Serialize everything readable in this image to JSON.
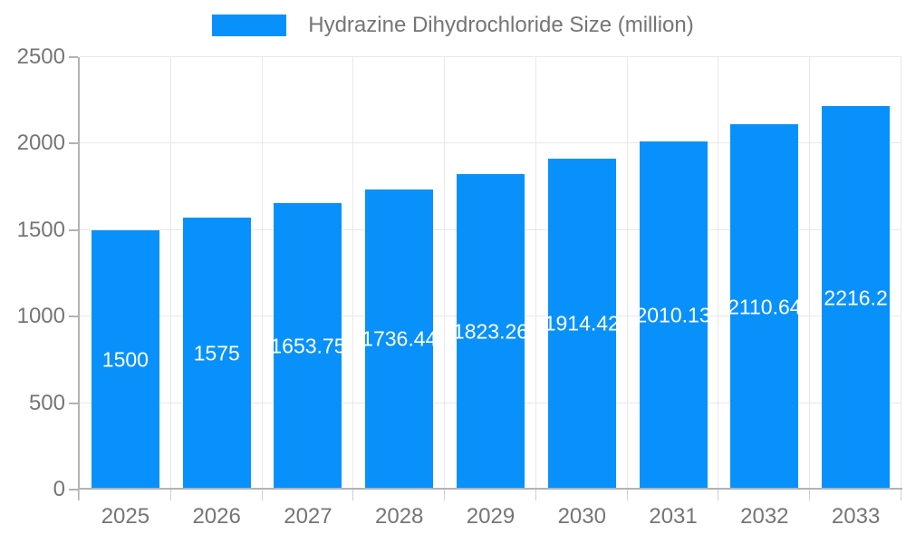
{
  "legend": {
    "label": "Hydrazine Dihydrochloride Size (million)"
  },
  "colors": {
    "bar": "#0991fb",
    "grid": "#e8e8e8",
    "axis": "#b3b3b3",
    "tick": "#cfcfcf",
    "axis_text": "#757575",
    "value_text": "#ffffff",
    "background": "#ffffff"
  },
  "chart_data": {
    "type": "bar",
    "title": "Hydrazine Dihydrochloride Size (million)",
    "series_name": "Hydrazine Dihydrochloride Size (million)",
    "categories": [
      "2025",
      "2026",
      "2027",
      "2028",
      "2029",
      "2030",
      "2031",
      "2032",
      "2033"
    ],
    "values": [
      1500,
      1575,
      1653.75,
      1736.44,
      1823.26,
      1914.42,
      2010.13,
      2110.64,
      2216.2
    ],
    "value_labels": [
      "1500",
      "1575",
      "1653.75",
      "1736.44",
      "1823.26",
      "1914.42",
      "2010.13",
      "2110.64",
      "2216.2"
    ],
    "xlabel": "",
    "ylabel": "",
    "ylim": [
      0,
      2500
    ],
    "yticks": [
      0,
      500,
      1000,
      1500,
      2000,
      2500
    ],
    "grid": true,
    "legend_position": "top"
  }
}
